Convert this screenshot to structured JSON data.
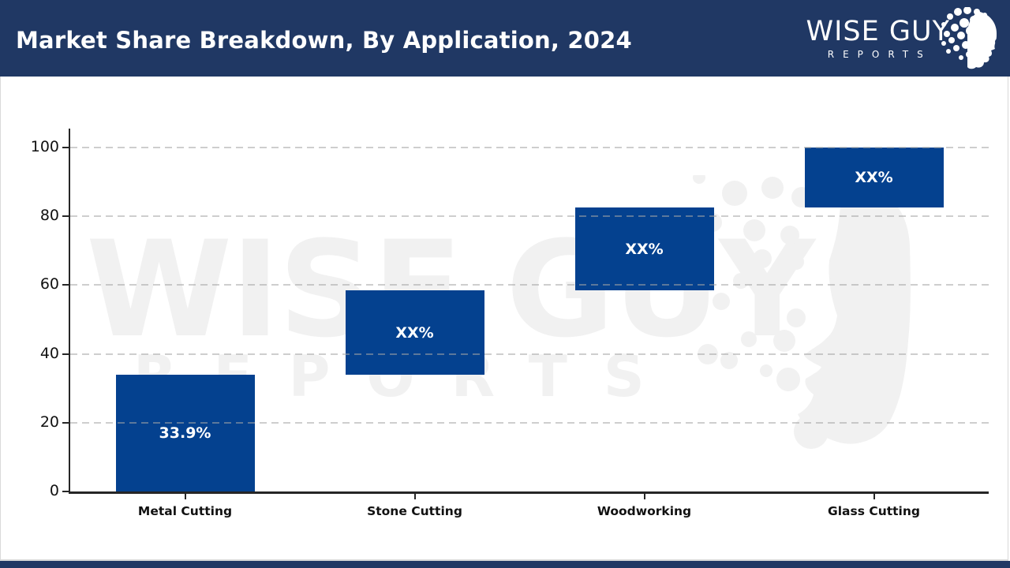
{
  "header": {
    "title": "Market Share Breakdown, By Application, 2024",
    "logo": {
      "line1": "WISE GUY",
      "line2": "REPORTS"
    }
  },
  "watermark": {
    "line1": "WISE GUY",
    "line2": "REPORTS"
  },
  "chart_data": {
    "type": "bar",
    "subtype": "waterfall",
    "title": "Market Share Breakdown, By Application, 2024",
    "categories": [
      "Metal Cutting",
      "Stone Cutting",
      "Woodworking",
      "Glass Cutting"
    ],
    "segments": [
      {
        "category": "Metal Cutting",
        "start": 0,
        "end": 33.9,
        "label": "33.9%"
      },
      {
        "category": "Stone Cutting",
        "start": 33.9,
        "end": 58.4,
        "label": "XX%"
      },
      {
        "category": "Woodworking",
        "start": 58.4,
        "end": 82.6,
        "label": "XX%"
      },
      {
        "category": "Glass Cutting",
        "start": 82.6,
        "end": 100,
        "label": "XX%"
      }
    ],
    "yticks": [
      0,
      20,
      40,
      60,
      80,
      100
    ],
    "ylim": [
      0,
      105
    ],
    "xlabel": "",
    "ylabel": "",
    "grid": "dashed-horizontal-over-bars",
    "legend": "none",
    "bar_color": "#04418f",
    "bar_label_color": "#ffffff"
  },
  "colors": {
    "header_bg": "#203864",
    "footer_bg": "#203864",
    "bar": "#04418f",
    "watermark": "#f1f1f1",
    "axis": "#262626",
    "gridline": "#a5a5a5",
    "border": "#d9d9d9"
  }
}
